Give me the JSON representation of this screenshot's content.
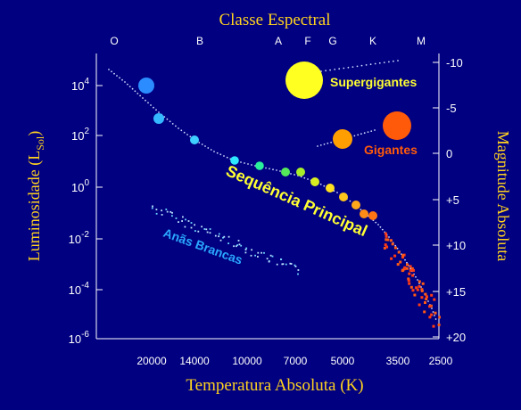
{
  "colors": {
    "background": "#000080",
    "axis_label": "#ffd21f",
    "axis_line": "#ffffff",
    "tick_label": "#ffffff",
    "dots": "#d0d8ff",
    "supergiants_label": "#ffff33",
    "giants_label": "#ff5a0a",
    "main_sequence_label": "#ffff33",
    "white_dwarfs_label": "#2aa7ff"
  },
  "top_axis": {
    "title": "Classe Espectral",
    "ticks": [
      "O",
      "B",
      "A",
      "F",
      "G",
      "K",
      "M"
    ]
  },
  "bottom_axis": {
    "title": "Temperatura Absoluta (K)",
    "ticks": [
      "20000",
      "14000",
      "10000",
      "7000",
      "5000",
      "3500",
      "2500"
    ]
  },
  "left_axis": {
    "title_main": "Luminosidade (L",
    "title_sub": "Sol",
    "title_close": ")",
    "tick_base": "10",
    "tick_exponents": [
      "4",
      "2",
      "0",
      "-2",
      "-4",
      "-6"
    ]
  },
  "right_axis": {
    "title": "Magnitude Absoluta",
    "ticks": [
      "-10",
      "-5",
      "0",
      "+5",
      "+10",
      "+15",
      "+20"
    ]
  },
  "labels": {
    "supergiants": "Supergigantes",
    "giants": "Gigantes",
    "main_sequence": "Sequência Principal",
    "white_dwarfs": "Anãs Brancas"
  },
  "stars": {
    "main_sequence": [
      {
        "name": "o-star",
        "color": "#2b8cff"
      },
      {
        "name": "b-star",
        "color": "#35b8ff"
      },
      {
        "name": "a-star",
        "color": "#3fd0ff"
      },
      {
        "name": "a2-star",
        "color": "#2de6ff"
      },
      {
        "name": "f-star",
        "color": "#2aef9a"
      },
      {
        "name": "f2-star",
        "color": "#55e85a"
      },
      {
        "name": "g-star",
        "color": "#a8ef2a"
      },
      {
        "name": "g2-star",
        "color": "#d9ee21"
      },
      {
        "name": "g3-star",
        "color": "#ffe01f"
      },
      {
        "name": "k-star",
        "color": "#ffc61c"
      },
      {
        "name": "k2-star",
        "color": "#ffa91a"
      },
      {
        "name": "k3-star",
        "color": "#ff8c17"
      },
      {
        "name": "k4-star",
        "color": "#ff7514"
      }
    ],
    "giants": [
      {
        "name": "yellow-giant",
        "color": "#ff9e00"
      },
      {
        "name": "red-giant",
        "color": "#ff5a0a"
      }
    ],
    "supergiant": {
      "name": "yellow-supergiant",
      "color": "#ffff22"
    }
  }
}
